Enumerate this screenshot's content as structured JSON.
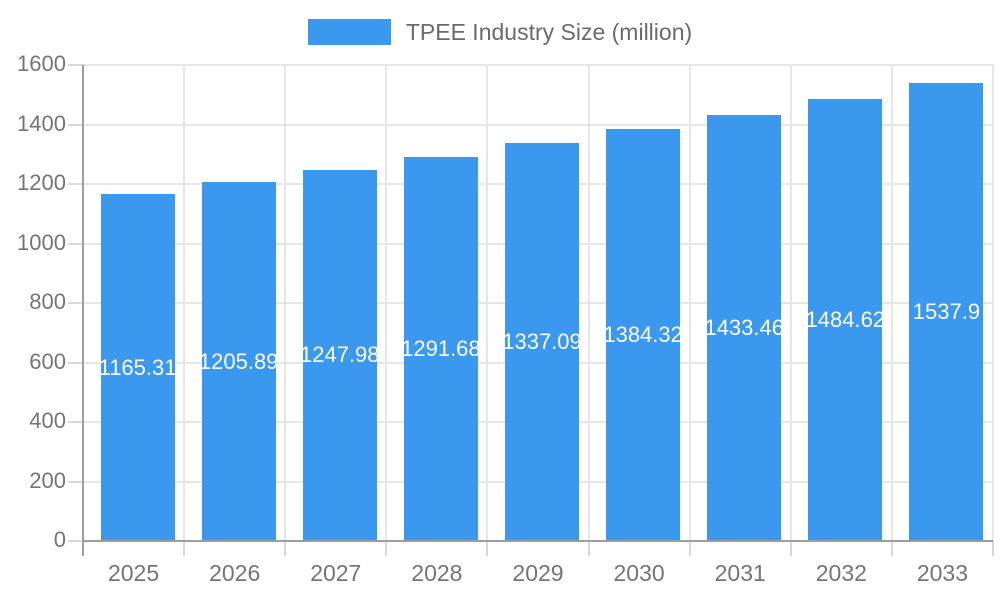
{
  "legend": {
    "label": "TPEE Industry Size (million)"
  },
  "colors": {
    "bar": "#3a98ee",
    "value_label": "#ffffff",
    "axis_text": "#757575",
    "legend_text": "#6b6b6b",
    "grid": "#e6e6e6",
    "tick": "#d9d9d9",
    "axis_line": "#9e9e9e",
    "background": "#ffffff"
  },
  "chart_data": {
    "type": "bar",
    "title": "TPEE Industry Size (million)",
    "xlabel": "",
    "ylabel": "",
    "categories": [
      "2025",
      "2026",
      "2027",
      "2028",
      "2029",
      "2030",
      "2031",
      "2032",
      "2033"
    ],
    "series": [
      {
        "name": "TPEE Industry Size (million)",
        "values": [
          1165.31,
          1205.89,
          1247.98,
          1291.68,
          1337.09,
          1384.32,
          1433.46,
          1484.62,
          1537.9
        ]
      }
    ],
    "value_labels": [
      "1165.31",
      "1205.89",
      "1247.98",
      "1291.68",
      "1337.09",
      "1384.32",
      "1433.46",
      "1484.62",
      "1537.9"
    ],
    "ylim": [
      0,
      1600
    ],
    "yticks": [
      0,
      200,
      400,
      600,
      800,
      1000,
      1200,
      1400,
      1600
    ],
    "grid": true,
    "legend_position": "top",
    "value_labels_inside_bars": true
  }
}
